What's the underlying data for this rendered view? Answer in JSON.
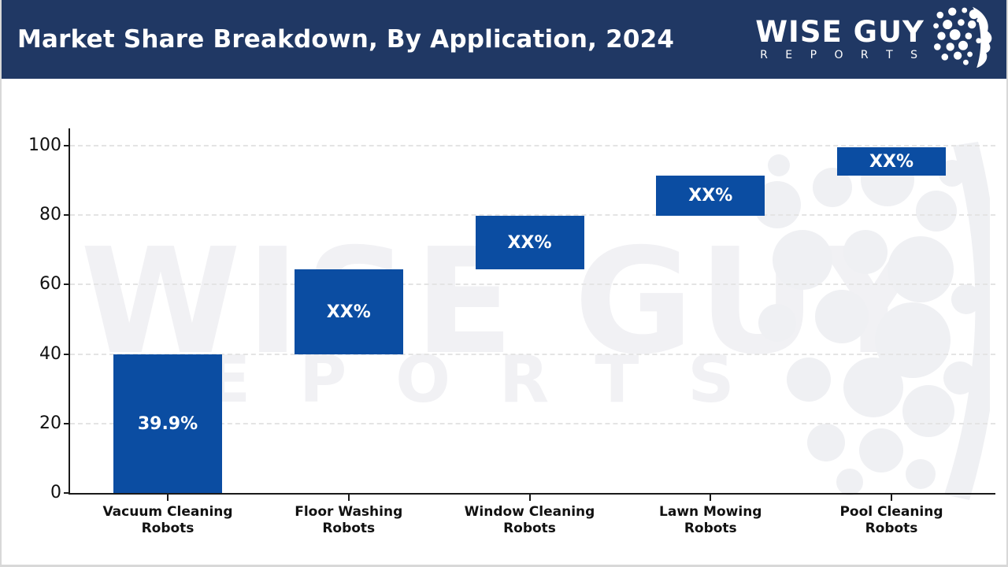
{
  "header": {
    "title": "Market Share Breakdown, By Application, 2024",
    "bg_color": "#203864",
    "brand": {
      "wordmark_line1": "WISE GUY",
      "wordmark_line2": "R E P O R T S"
    }
  },
  "watermark": {
    "line1": "WISE GUY",
    "line2": "REPORTS"
  },
  "chart_data": {
    "type": "bar",
    "subtype": "waterfall",
    "title": "Market Share Breakdown, By Application, 2024",
    "xlabel": "",
    "ylabel": "",
    "ylim": [
      0,
      105
    ],
    "yticks": [
      0,
      20,
      40,
      60,
      80,
      100
    ],
    "grid": "horizontal-dashed",
    "legend": "none",
    "bar_color": "#0b4da2",
    "bar_label_color": "#ffffff",
    "categories": [
      "Vacuum Cleaning Robots",
      "Floor Washing Robots",
      "Window Cleaning Robots",
      "Lawn Mowing Robots",
      "Pool Cleaning Robots"
    ],
    "segments": [
      {
        "category": "Vacuum Cleaning Robots",
        "start": 0,
        "end": 39.9,
        "value_label": "39.9%"
      },
      {
        "category": "Floor Washing Robots",
        "start": 39.9,
        "end": 64.4,
        "value_label": "XX%"
      },
      {
        "category": "Window Cleaning Robots",
        "start": 64.4,
        "end": 79.9,
        "value_label": "XX%"
      },
      {
        "category": "Lawn Mowing Robots",
        "start": 79.9,
        "end": 91.3,
        "value_label": "XX%"
      },
      {
        "category": "Pool Cleaning Robots",
        "start": 91.3,
        "end": 99.6,
        "value_label": "XX%"
      }
    ]
  }
}
